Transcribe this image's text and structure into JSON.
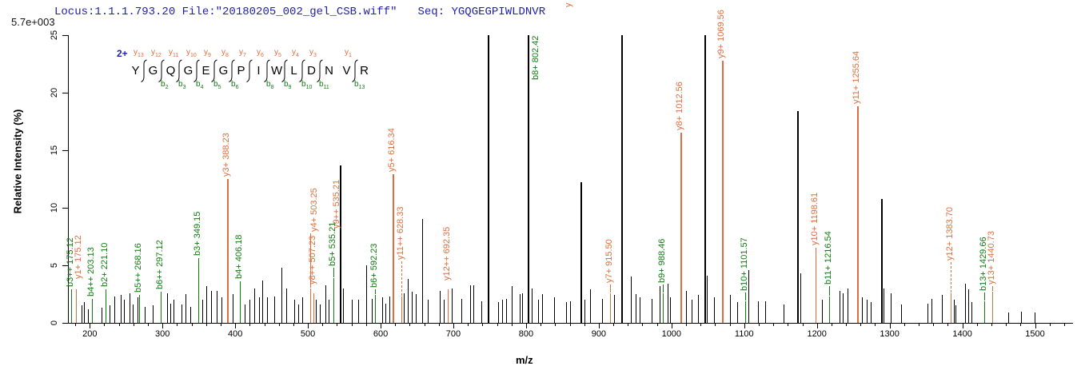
{
  "header": {
    "locus_file": "Locus:1.1.1.793.20 File:\"20180205_002_gel_CSB.wiff\"",
    "seq_text": "Seq: YGQGEGPIWLDNVR",
    "intensity_scale": "5.7e+003"
  },
  "peptide": {
    "charge": "2+",
    "sequence": "YGQGEGPIWLDNVR",
    "residues": [
      "Y",
      "G",
      "Q",
      "G",
      "E",
      "G",
      "P",
      "I",
      "W",
      "L",
      "D",
      "N",
      "V",
      "R"
    ],
    "gaps": [
      {
        "y": 13,
        "b": null,
        "bracket": true
      },
      {
        "y": 12,
        "b": 2,
        "bracket": true
      },
      {
        "y": 11,
        "b": 3,
        "bracket": true
      },
      {
        "y": 10,
        "b": 4,
        "bracket": true
      },
      {
        "y": 9,
        "b": 5,
        "bracket": true
      },
      {
        "y": 8,
        "b": 6,
        "bracket": true
      },
      {
        "y": 7,
        "b": null,
        "bracket": true
      },
      {
        "y": 6,
        "b": 8,
        "bracket": true
      },
      {
        "y": 5,
        "b": 9,
        "bracket": true
      },
      {
        "y": 4,
        "b": 10,
        "bracket": true
      },
      {
        "y": 3,
        "b": 11,
        "bracket": true
      },
      {
        "y": null,
        "b": null,
        "bracket": false
      },
      {
        "y": 1,
        "b": 13,
        "bracket": true
      }
    ]
  },
  "chart_data": {
    "type": "bar",
    "subtype": "ms2-stick-spectrum",
    "title": "Locus:1.1.1.793.20 File:\"20180205_002_gel_CSB.wiff\"  Seq: YGQGEGPIWLDNVR",
    "xlabel": "m/z",
    "ylabel": "Relative  Intensity (%)",
    "xlim": [
      170,
      1550
    ],
    "ylim": [
      0,
      25
    ],
    "x_major_ticks": [
      200,
      300,
      400,
      500,
      600,
      700,
      800,
      900,
      1000,
      1100,
      1200,
      1300,
      1400,
      1500
    ],
    "x_minor_tick_step": 20,
    "y_ticks": [
      0,
      5,
      10,
      15,
      20,
      25
    ],
    "max_intensity_counts": "5.7e+003",
    "grid": false,
    "legend": false,
    "colors": {
      "b_ion": "#0f7d0f",
      "y_ion": "#dd6f3c",
      "unassigned": "#000000",
      "header_blue": "#2121af"
    },
    "series": [
      {
        "name": "b-ions",
        "color": "#0f7d0f",
        "peaks": [
          {
            "mz": 174.8,
            "h": 2.9,
            "label": "b3++ 175.12"
          },
          {
            "mz": 203.13,
            "h": 2.1,
            "label": "b4++ 203.13"
          },
          {
            "mz": 221.1,
            "h": 2.9,
            "label": "b2+ 221.10"
          },
          {
            "mz": 268.16,
            "h": 2.4,
            "label": "b5++ 268.16"
          },
          {
            "mz": 297.12,
            "h": 2.7,
            "label": "b6++ 297.12"
          },
          {
            "mz": 349.15,
            "h": 5.6,
            "label": "b3+ 349.15"
          },
          {
            "mz": 406.18,
            "h": 3.6,
            "label": "b4+ 406.18"
          },
          {
            "mz": 535.21,
            "h": 3.9,
            "label": "b5+ 535.21",
            "elev": 14,
            "leader": "solid"
          },
          {
            "mz": 592.23,
            "h": 2.4,
            "label": "b6+ 592.23",
            "elev": 8,
            "leader": "solid"
          },
          {
            "mz": 802.42,
            "h": 25,
            "label": "b8+ 802.42",
            "stick": "#000000",
            "dx": 17,
            "label_bottom": 304
          },
          {
            "mz": 988.46,
            "h": 2.6,
            "label": "b9+ 988.46",
            "elev": 12,
            "leader": "solid"
          },
          {
            "mz": 1101.57,
            "h": 1.9,
            "label": "b10+ 1101.57",
            "elev": 12,
            "leader": "solid"
          },
          {
            "mz": 1216.54,
            "h": 2.3,
            "label": "b11+ 1216.54",
            "elev": 14,
            "leader": "solid"
          },
          {
            "mz": 1429.66,
            "h": 1.9,
            "label": "b13+ 1429.66",
            "elev": 12,
            "leader": "solid"
          }
        ]
      },
      {
        "name": "y-ions",
        "color": "#dd6f3c",
        "peaks": [
          {
            "mz": 180.5,
            "h": 2.9,
            "label": "y1+ 175.12",
            "elev": 12,
            "dx": 10
          },
          {
            "mz": 388.23,
            "h": 12.5,
            "label": "y3+ 388.23"
          },
          {
            "mz": 503.25,
            "h": 3.0,
            "label": "y4+ 503.25",
            "elev": 70,
            "leader": "solid",
            "dx": 12
          },
          {
            "mz": 507.23,
            "h": 2.6,
            "label": "y8++ 507.23",
            "elev": 10
          },
          {
            "mz": 537.8,
            "h": 0,
            "label": "y9++ 535.21",
            "elev": 117,
            "dx": 8
          },
          {
            "mz": 616.34,
            "h": 12.9,
            "label": "y5+ 616.34"
          },
          {
            "mz": 628.33,
            "h": 2.3,
            "label": "y11++ 628.33",
            "elev": 45,
            "leader": "dashed"
          },
          {
            "mz": 692.35,
            "h": 2.9,
            "label": "y12++ 692.35",
            "elev": 10
          },
          {
            "mz": 915.5,
            "h": 2.6,
            "label": "y7+ 915.50",
            "elev": 12,
            "leader": "solid"
          },
          {
            "mz": 1012.56,
            "h": 16.5,
            "label": "y8+ 1012.56"
          },
          {
            "mz": 1069.56,
            "h": 22.8,
            "label": "y9+ 1069.56"
          },
          {
            "mz": 1198.61,
            "h": 6.5,
            "label": "y10+ 1198.61"
          },
          {
            "mz": 1255.64,
            "h": 18.8,
            "label": "y11+ 1255.64"
          },
          {
            "mz": 1383.7,
            "h": 2.6,
            "label": "y12+ 1383.70",
            "elev": 40,
            "leader": "dashed"
          },
          {
            "mz": 1440.73,
            "h": 2.7,
            "label": "y13+ 1440.73",
            "elev": 8,
            "leader": "solid"
          },
          {
            "mz": 859,
            "h": 0,
            "label": "y",
            "elev": 394
          }
        ]
      },
      {
        "name": "unassigned",
        "color": "#000000",
        "pairs": [
          [
            189,
            1.5
          ],
          [
            192,
            1.8
          ],
          [
            197,
            1.2
          ],
          [
            216,
            1.3
          ],
          [
            227,
            1.5
          ],
          [
            234,
            2.3
          ],
          [
            242,
            2.4
          ],
          [
            247,
            2.0
          ],
          [
            255,
            2.6
          ],
          [
            259,
            1.6
          ],
          [
            266,
            2.2
          ],
          [
            276,
            1.4
          ],
          [
            286,
            1.5
          ],
          [
            306,
            2.6
          ],
          [
            311,
            1.7
          ],
          [
            315,
            2.0
          ],
          [
            326,
            1.6
          ],
          [
            332,
            2.5
          ],
          [
            338,
            1.4
          ],
          [
            355,
            2.0
          ],
          [
            360,
            3.2
          ],
          [
            367,
            2.8
          ],
          [
            374,
            2.8
          ],
          [
            381,
            2.2
          ],
          [
            396,
            2.5
          ],
          [
            413,
            1.6
          ],
          [
            420,
            2.0
          ],
          [
            426,
            3.0
          ],
          [
            433,
            2.2
          ],
          [
            437,
            3.7
          ],
          [
            444,
            2.2
          ],
          [
            454,
            2.3
          ],
          [
            463,
            4.8
          ],
          [
            470,
            3.0
          ],
          [
            481,
            2.0
          ],
          [
            487,
            1.6
          ],
          [
            492,
            2.2
          ],
          [
            511,
            2.0
          ],
          [
            516,
            1.6
          ],
          [
            524,
            3.3
          ],
          [
            528,
            2.0
          ],
          [
            543.5,
            13.7
          ],
          [
            548,
            3.0
          ],
          [
            560,
            2.0
          ],
          [
            569,
            2.0
          ],
          [
            580,
            5.0
          ],
          [
            588,
            2.1
          ],
          [
            602,
            2.2
          ],
          [
            607,
            1.7
          ],
          [
            612,
            2.3
          ],
          [
            632,
            2.6
          ],
          [
            637,
            3.8
          ],
          [
            643,
            2.7
          ],
          [
            648,
            2.5
          ],
          [
            657,
            9.0
          ],
          [
            665,
            2.0
          ],
          [
            681,
            2.8
          ],
          [
            687,
            2.0
          ],
          [
            698,
            3.0
          ],
          [
            711,
            2.1
          ],
          [
            723,
            3.3
          ],
          [
            727,
            3.3
          ],
          [
            738,
            1.9
          ],
          [
            747,
            25
          ],
          [
            762,
            1.8
          ],
          [
            767,
            2.0
          ],
          [
            773,
            2.1
          ],
          [
            780,
            3.2
          ],
          [
            791,
            2.5
          ],
          [
            795,
            2.6
          ],
          [
            808,
            3.0
          ],
          [
            817,
            2.0
          ],
          [
            822,
            2.5
          ],
          [
            838,
            2.2
          ],
          [
            855,
            1.8
          ],
          [
            860,
            1.9
          ],
          [
            875,
            12.2
          ],
          [
            880,
            2.0
          ],
          [
            888,
            2.9
          ],
          [
            904,
            2.1
          ],
          [
            921,
            2.4
          ],
          [
            931,
            25
          ],
          [
            944,
            4.0
          ],
          [
            951,
            2.5
          ],
          [
            956,
            2.2
          ],
          [
            973,
            2.1
          ],
          [
            984,
            3.2
          ],
          [
            995,
            3.4
          ],
          [
            998,
            2.2
          ],
          [
            1020,
            2.8
          ],
          [
            1028,
            2.0
          ],
          [
            1036,
            2.4
          ],
          [
            1045,
            25
          ],
          [
            1048,
            4.1
          ],
          [
            1058,
            2.2
          ],
          [
            1080,
            2.4
          ],
          [
            1090,
            1.8
          ],
          [
            1106,
            4.6
          ],
          [
            1119,
            1.9
          ],
          [
            1129,
            1.9
          ],
          [
            1154,
            1.6
          ],
          [
            1173,
            18.4
          ],
          [
            1177,
            4.3
          ],
          [
            1207,
            2.0
          ],
          [
            1231,
            2.8
          ],
          [
            1236,
            2.6
          ],
          [
            1242,
            3.0
          ],
          [
            1262,
            2.2
          ],
          [
            1268,
            2.0
          ],
          [
            1274,
            1.8
          ],
          [
            1288,
            10.8
          ],
          [
            1291,
            3.0
          ],
          [
            1301,
            2.6
          ],
          [
            1316,
            1.6
          ],
          [
            1352,
            1.7
          ],
          [
            1358,
            2.1
          ],
          [
            1372,
            2.4
          ],
          [
            1388,
            2.0
          ],
          [
            1391,
            1.5
          ],
          [
            1404,
            3.4
          ],
          [
            1408,
            2.9
          ],
          [
            1413,
            1.8
          ],
          [
            1463,
            0.9
          ],
          [
            1481,
            1.0
          ],
          [
            1499,
            0.9
          ]
        ]
      }
    ]
  }
}
